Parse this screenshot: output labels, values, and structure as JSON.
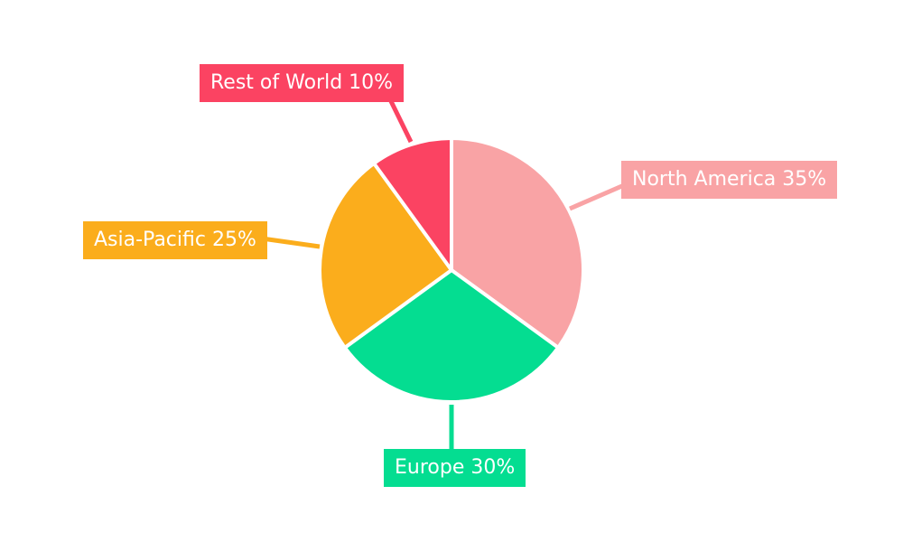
{
  "chart_data": {
    "type": "pie",
    "title": "",
    "start_angle": "top (12 o'clock)",
    "direction": "clockwise",
    "legend_position": "external-callout-labels",
    "background_color": "#FFFFFF",
    "label_text_color": "#FFFFFF",
    "gap_color": "#FFFFFF",
    "slices": [
      {
        "label": "North America",
        "value": 35,
        "display": "North America 35%",
        "color": "#F9A3A5"
      },
      {
        "label": "Europe",
        "value": 30,
        "display": "Europe 30%",
        "color": "#04DD91"
      },
      {
        "label": "Asia-Pacific",
        "value": 25,
        "display": "Asia-Pacific 25%",
        "color": "#FBAD1C"
      },
      {
        "label": "Rest of World",
        "value": 10,
        "display": "Rest of World 10%",
        "color": "#FB4362"
      }
    ]
  }
}
